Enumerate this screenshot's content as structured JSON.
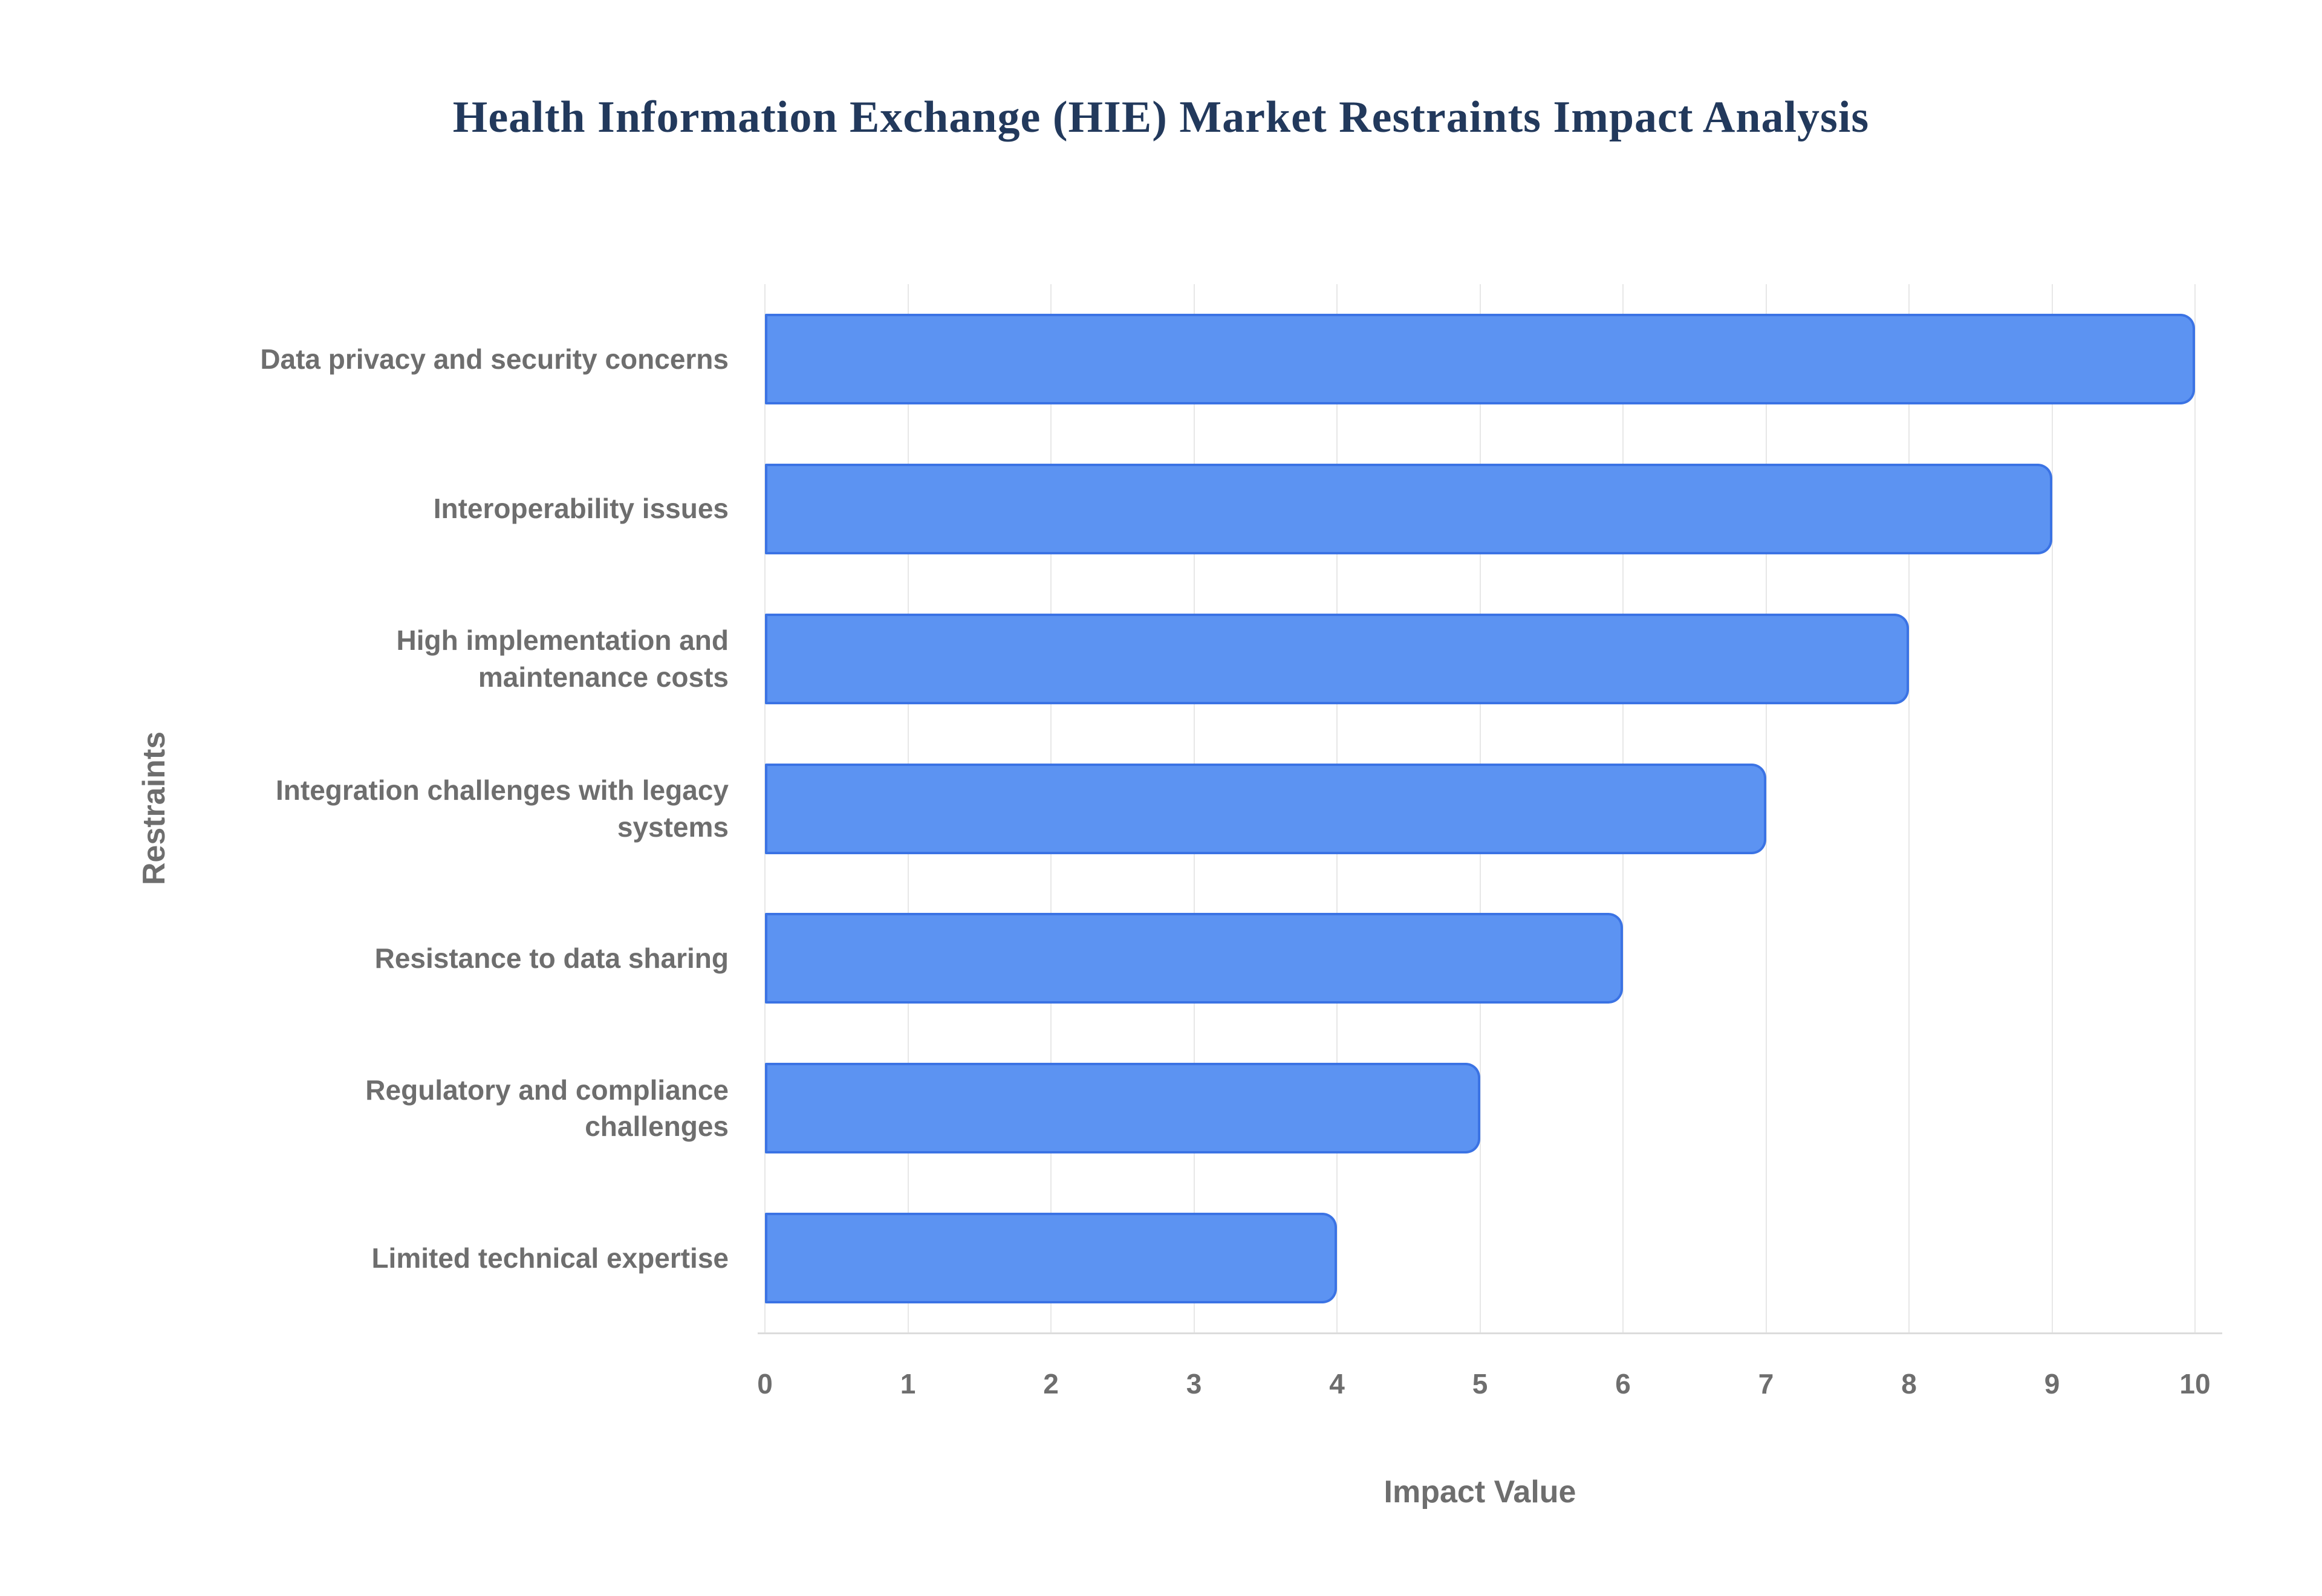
{
  "chart_data": {
    "type": "bar",
    "orientation": "horizontal",
    "title": "Health Information Exchange (HIE) Market Restraints Impact Analysis",
    "xlabel": "Impact Value",
    "ylabel": "Restraints",
    "categories": [
      "Data privacy and security concerns",
      "Interoperability issues",
      "High implementation and maintenance costs",
      "Integration challenges with legacy systems",
      "Resistance to data sharing",
      "Regulatory and compliance challenges",
      "Limited technical expertise"
    ],
    "values": [
      10,
      9,
      8,
      7,
      6,
      5,
      4
    ],
    "xlim": [
      0,
      10
    ],
    "xticks": [
      0,
      1,
      2,
      3,
      4,
      5,
      6,
      7,
      8,
      9,
      10
    ],
    "grid": true,
    "legend": "none",
    "colors": {
      "bar_fill": "#5c93f2",
      "bar_border": "#3b73e4",
      "title_text": "#22395c",
      "axis_text": "#6e6e6e",
      "gridline": "#e7e7e7",
      "axis_line": "#dcdcdc"
    }
  }
}
